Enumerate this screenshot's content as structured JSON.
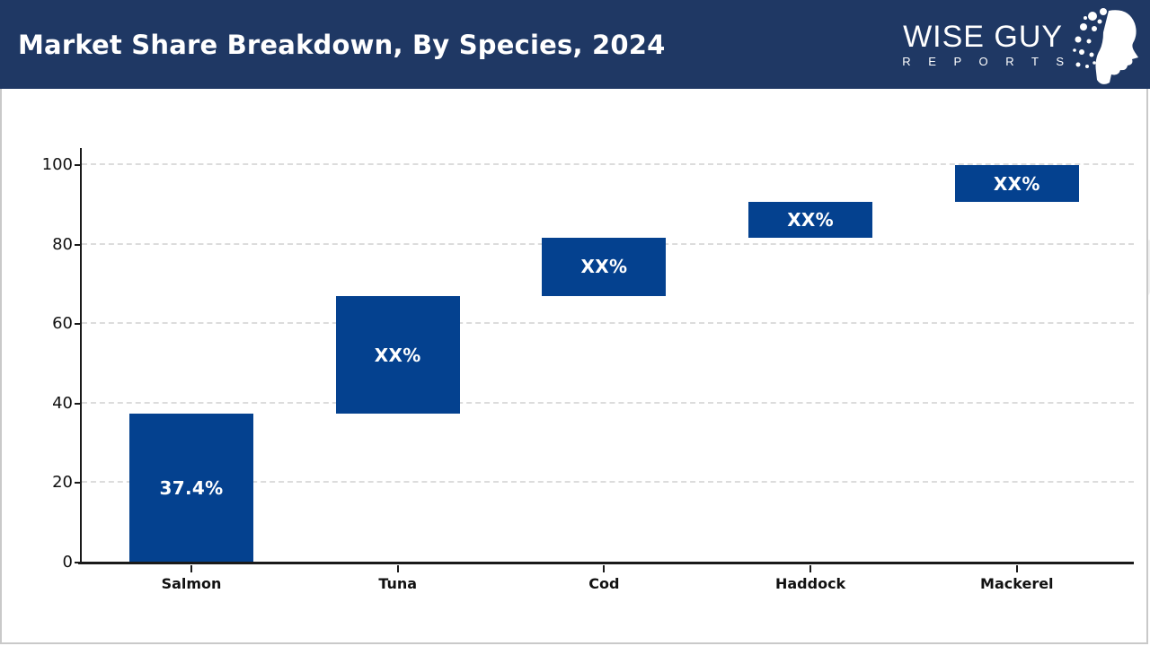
{
  "header": {
    "title": "Market Share Breakdown, By Species, 2024",
    "logo": {
      "line1": "WISE GUY",
      "line2": "R E P O R T S"
    }
  },
  "watermark": {
    "line1": "WISE GUY",
    "line2": "REPORTS"
  },
  "colors": {
    "header_bg": "#1f3864",
    "bar_blue": "#04418f",
    "axis": "#1a1a1a",
    "gridline": "#dcdcdc",
    "watermark_gray": "#f1f1f1",
    "bar_label_text": "#ffffff"
  },
  "chart_data": {
    "type": "bar",
    "subtype": "waterfall",
    "title": "Market Share Breakdown, By Species, 2024",
    "xlabel": "",
    "ylabel": "",
    "ylim": [
      0,
      100
    ],
    "yticks": [
      0,
      20,
      40,
      60,
      80,
      100
    ],
    "grid": "horizontal-dashed",
    "legend": "none",
    "categories": [
      "Salmon",
      "Tuna",
      "Cod",
      "Haddock",
      "Mackerel"
    ],
    "segments": [
      {
        "category": "Salmon",
        "start": 0,
        "end": 37.4,
        "value": 37.4,
        "label": "37.4%"
      },
      {
        "category": "Tuna",
        "start": 37.4,
        "end": 67.1,
        "value": 29.7,
        "label": "XX%"
      },
      {
        "category": "Cod",
        "start": 67.1,
        "end": 81.8,
        "value": 14.7,
        "label": "XX%"
      },
      {
        "category": "Haddock",
        "start": 81.8,
        "end": 90.8,
        "value": 9.0,
        "label": "XX%"
      },
      {
        "category": "Mackerel",
        "start": 90.8,
        "end": 100,
        "value": 9.2,
        "label": "XX%"
      }
    ],
    "bar_color": "#04418f",
    "label_color": "#ffffff"
  }
}
